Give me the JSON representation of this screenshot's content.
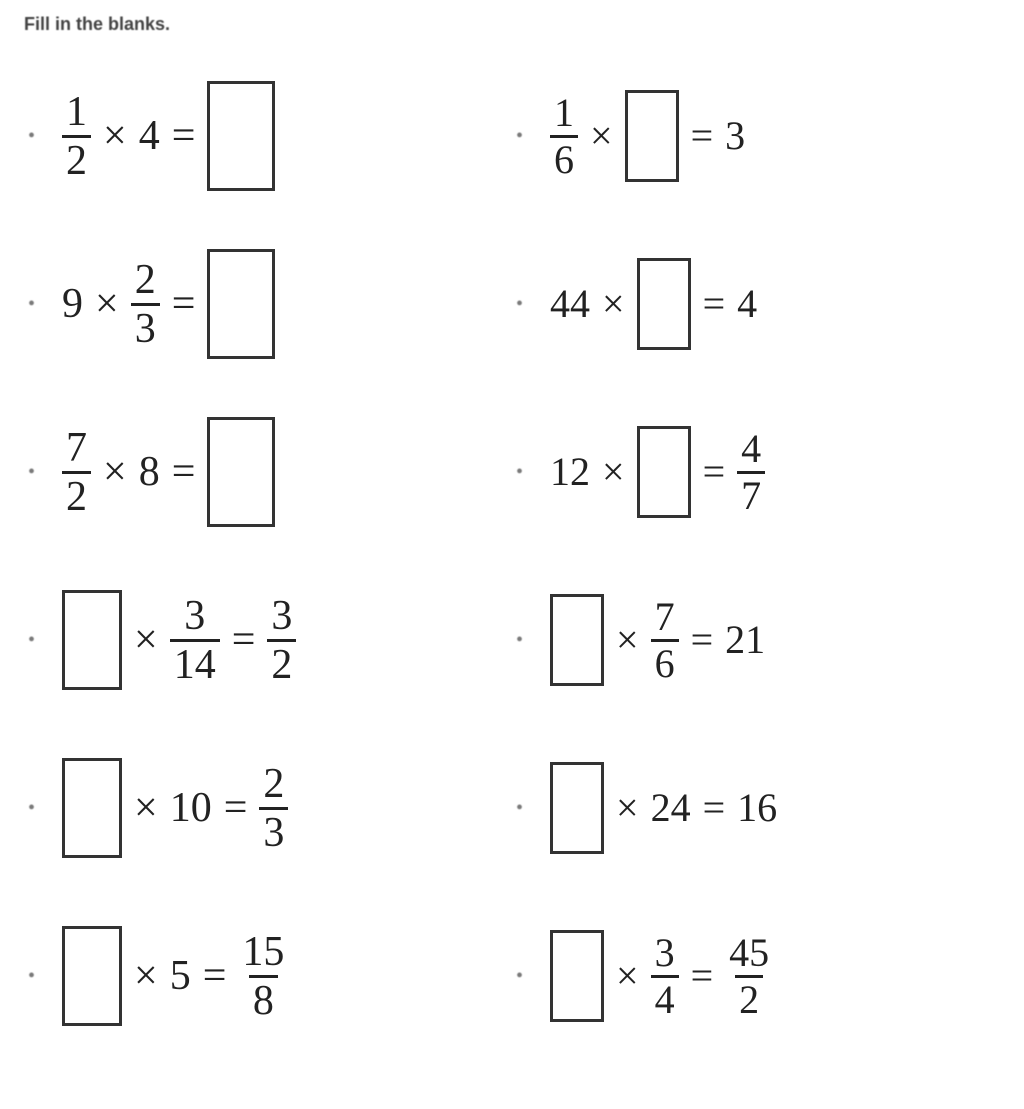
{
  "instruction": "Fill in the blanks.",
  "glyphs": {
    "times": "×",
    "equals": "=",
    "bullet": "•"
  },
  "left": [
    {
      "a": {
        "type": "frac",
        "num": "1",
        "den": "2"
      },
      "b": {
        "type": "int",
        "v": "4"
      },
      "blank": "result",
      "blank_size": "lg"
    },
    {
      "a": {
        "type": "int",
        "v": "9"
      },
      "b": {
        "type": "frac",
        "num": "2",
        "den": "3"
      },
      "blank": "result",
      "blank_size": "lg"
    },
    {
      "a": {
        "type": "frac",
        "num": "7",
        "den": "2"
      },
      "b": {
        "type": "int",
        "v": "8"
      },
      "blank": "result",
      "blank_size": "lg"
    },
    {
      "blank": "first",
      "blank_size": "md",
      "b": {
        "type": "frac",
        "num": "3",
        "den": "14"
      },
      "r": {
        "type": "frac",
        "num": "3",
        "den": "2"
      }
    },
    {
      "blank": "first",
      "blank_size": "md",
      "b": {
        "type": "int",
        "v": "10"
      },
      "r": {
        "type": "frac",
        "num": "2",
        "den": "3"
      }
    },
    {
      "blank": "first",
      "blank_size": "md",
      "b": {
        "type": "int",
        "v": "5"
      },
      "r": {
        "type": "frac",
        "num": "15",
        "den": "8"
      }
    }
  ],
  "right": [
    {
      "a": {
        "type": "frac",
        "num": "1",
        "den": "6"
      },
      "blank": "second",
      "blank_size": "sm",
      "r": {
        "type": "int",
        "v": "3"
      }
    },
    {
      "a": {
        "type": "int",
        "v": "44"
      },
      "blank": "second",
      "blank_size": "sm",
      "r": {
        "type": "int",
        "v": "4"
      }
    },
    {
      "a": {
        "type": "int",
        "v": "12"
      },
      "blank": "second",
      "blank_size": "sm",
      "r": {
        "type": "frac",
        "num": "4",
        "den": "7"
      }
    },
    {
      "blank": "first",
      "blank_size": "sm",
      "b": {
        "type": "frac",
        "num": "7",
        "den": "6"
      },
      "r": {
        "type": "int",
        "v": "21"
      }
    },
    {
      "blank": "first",
      "blank_size": "sm",
      "b": {
        "type": "int",
        "v": "24"
      },
      "r": {
        "type": "int",
        "v": "16"
      }
    },
    {
      "blank": "first",
      "blank_size": "sm",
      "b": {
        "type": "frac",
        "num": "3",
        "den": "4"
      },
      "r": {
        "type": "frac",
        "num": "45",
        "den": "2"
      }
    }
  ]
}
